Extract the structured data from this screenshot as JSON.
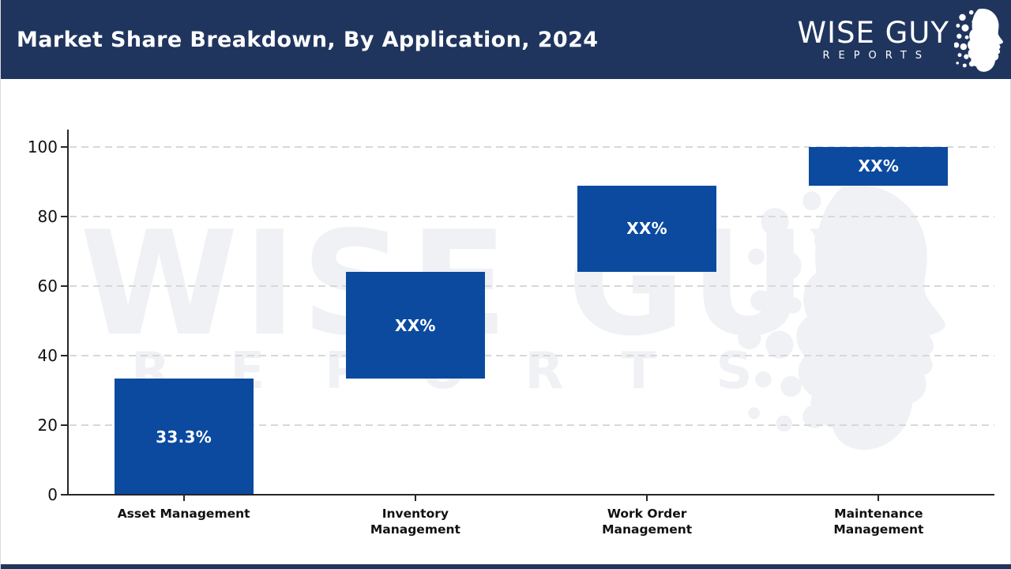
{
  "header": {
    "title": "Market Share Breakdown, By Application, 2024",
    "logo": {
      "line1": "WISE GUY",
      "line2": "REPORTS"
    }
  },
  "watermark": {
    "line1": "WISE GUY",
    "line2": "REPORTS"
  },
  "colors": {
    "header_bg": "#20355E",
    "footer_bg": "#20355E",
    "bar": "#0B4A9F",
    "bar_label": "#FFFFFF",
    "grid": "#D8D8D8",
    "axis": "#262626",
    "watermark": "#F0F1F4"
  },
  "chart_data": {
    "type": "bar",
    "subtype": "waterfall",
    "title": "Market Share Breakdown, By Application, 2024",
    "xlabel": "",
    "ylabel": "",
    "categories": [
      "Asset Management",
      "Inventory Management",
      "Work Order Management",
      "Maintenance Management"
    ],
    "category_lines": [
      [
        "Asset Management"
      ],
      [
        "Inventory",
        "Management"
      ],
      [
        "Work Order",
        "Management"
      ],
      [
        "Maintenance",
        "Management"
      ]
    ],
    "segments": [
      {
        "start": 0,
        "end": 33.3,
        "label": "33.3%"
      },
      {
        "start": 33.3,
        "end": 64.1,
        "label": "XX%"
      },
      {
        "start": 64.1,
        "end": 88.9,
        "label": "XX%"
      },
      {
        "start": 88.9,
        "end": 100,
        "label": "XX%"
      }
    ],
    "yticks": [
      0,
      20,
      40,
      60,
      80,
      100
    ],
    "ylim": [
      0,
      105
    ],
    "grid": true,
    "legend_position": "none"
  }
}
